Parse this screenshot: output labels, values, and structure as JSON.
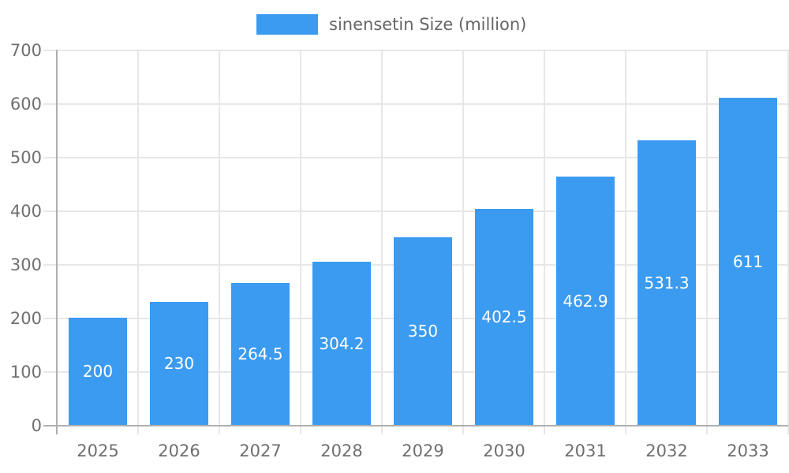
{
  "chart_data": {
    "type": "bar",
    "title": "",
    "series_label": "sinensetin Size (million)",
    "categories": [
      "2025",
      "2026",
      "2027",
      "2028",
      "2029",
      "2030",
      "2031",
      "2032",
      "2033"
    ],
    "values": [
      200,
      230,
      264.5,
      304.2,
      350,
      402.5,
      462.9,
      531.3,
      611
    ],
    "value_labels": [
      "200",
      "230",
      "264.5",
      "304.2",
      "350",
      "402.5",
      "462.9",
      "531.3",
      "611"
    ],
    "xlabel": "",
    "ylabel": "",
    "ylim": [
      0,
      700
    ],
    "ytick_interval": 100,
    "grid": "horizontal-and-vertical",
    "legend_position": "top-center",
    "bar_label_position": "inside-center",
    "colors": {
      "bar": "#3B9BF1",
      "grid": "#E7E7E7",
      "axis": "#AFAFAF",
      "axis_label": "#6F6F6F",
      "legend_text": "#666666",
      "bar_label": "#FFFFFF",
      "background": "#FFFFFF"
    }
  }
}
